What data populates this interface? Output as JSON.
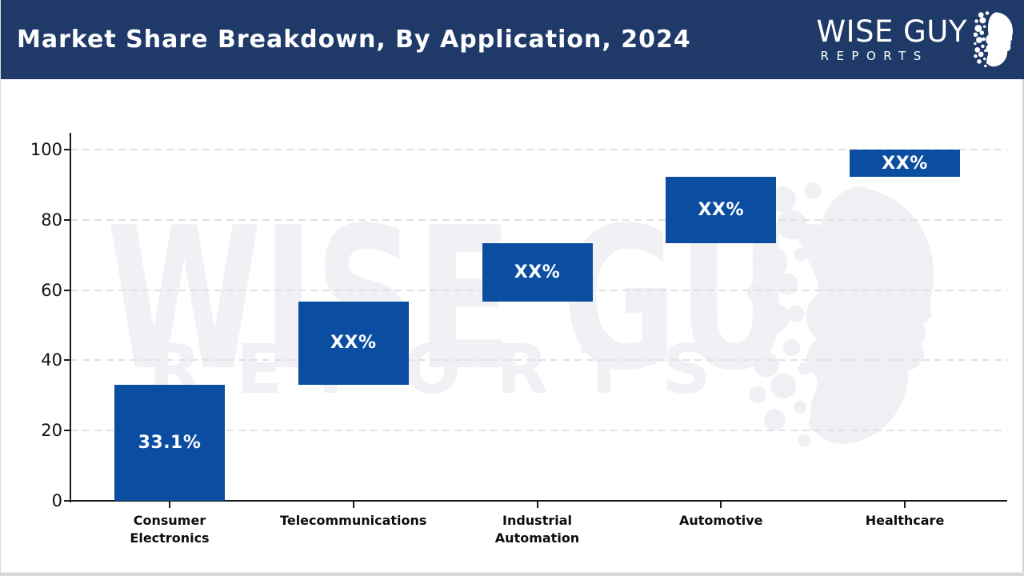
{
  "header": {
    "title": "Market Share Breakdown, By Application, 2024",
    "logo": {
      "name": "WISE GUY",
      "sub": "REPORTS"
    }
  },
  "watermark": {
    "line1": "WISE GUY",
    "line2": "REPORTS"
  },
  "chart_data": {
    "type": "bar",
    "subtype": "waterfall",
    "title": "Market Share Breakdown, By Application, 2024",
    "categories": [
      "Consumer\nElectronics",
      "Telecommunications",
      "Industrial\nAutomation",
      "Automotive",
      "Healthcare"
    ],
    "segments": [
      {
        "category": "Consumer Electronics",
        "start": 0,
        "end": 33.1,
        "label": "33.1%"
      },
      {
        "category": "Telecommunications",
        "start": 33.1,
        "end": 56.7,
        "label": "XX%"
      },
      {
        "category": "Industrial Automation",
        "start": 56.7,
        "end": 73.3,
        "label": "XX%"
      },
      {
        "category": "Automotive",
        "start": 73.3,
        "end": 92.2,
        "label": "XX%"
      },
      {
        "category": "Healthcare",
        "start": 92.2,
        "end": 100,
        "label": "XX%"
      }
    ],
    "ylim": [
      0,
      100
    ],
    "yticks": [
      0,
      20,
      40,
      60,
      80,
      100
    ],
    "grid": "horizontal-dashed",
    "legend": "none",
    "bar_color": "#0b4da1",
    "bar_label_color": "#ffffff"
  },
  "colors": {
    "header_bg": "#1f3a68",
    "bar": "#0b4da1",
    "watermark": "#f1f1f5",
    "grid": "#e1e1e5",
    "axis": "#1a1a1a"
  }
}
